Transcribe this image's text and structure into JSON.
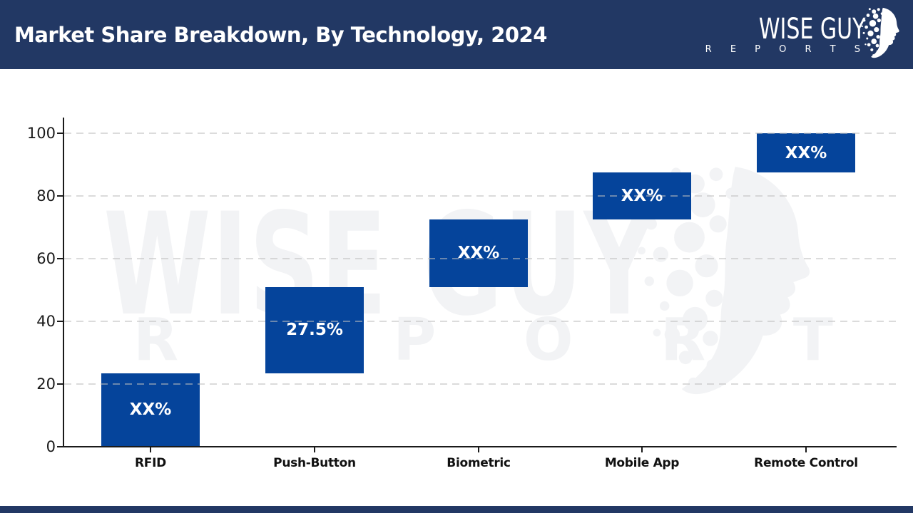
{
  "header": {
    "title": "Market Share Breakdown, By Technology, 2024",
    "logo": {
      "wordmark": "WISE GUY",
      "subtitle": "R E P O R T S"
    }
  },
  "watermark": {
    "wordmark": "WISE GUY",
    "subtitle": "R E P O R T S"
  },
  "colors": {
    "header_bg": "#223864",
    "footer_bg": "#223864",
    "bar": "#05449b",
    "bar_label": "#ffffff",
    "axis": "#1a1a1a",
    "tick_label": "#1a1a1a",
    "gridline": "rgba(190,190,190,0.55)",
    "watermark": "#f2f3f5"
  },
  "chart_data": {
    "type": "bar",
    "variant": "waterfall",
    "title": "Market Share Breakdown, By Technology, 2024",
    "xlabel": "",
    "ylabel": "",
    "categories": [
      "RFID",
      "Push-Button",
      "Biometric",
      "Mobile App",
      "Remote Control"
    ],
    "segments": [
      {
        "category": "RFID",
        "start": 0,
        "end": 23.5,
        "value_label": "XX%"
      },
      {
        "category": "Push-Button",
        "start": 23.5,
        "end": 51,
        "value_label": "27.5%",
        "value": 27.5
      },
      {
        "category": "Biometric",
        "start": 51,
        "end": 72.5,
        "value_label": "XX%"
      },
      {
        "category": "Mobile App",
        "start": 72.5,
        "end": 87.5,
        "value_label": "XX%"
      },
      {
        "category": "Remote Control",
        "start": 87.5,
        "end": 100,
        "value_label": "XX%"
      }
    ],
    "yticks": [
      0,
      20,
      40,
      60,
      80,
      100
    ],
    "ylim": [
      0,
      105
    ],
    "grid": "horizontal-dashed",
    "legend": "none"
  }
}
